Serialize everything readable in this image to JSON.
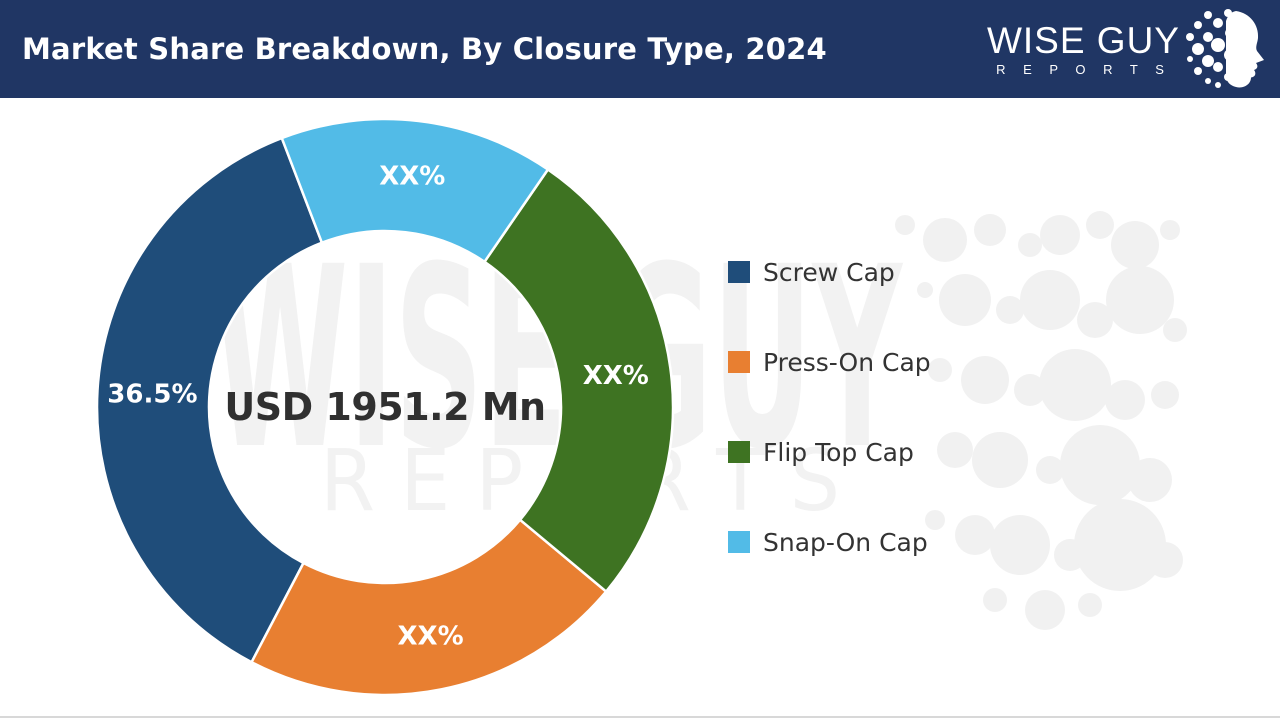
{
  "header": {
    "title": "Market Share Breakdown, By Closure Type, 2024",
    "logo": {
      "line1": "WISE GUY",
      "line2": "R E P O R T S"
    }
  },
  "watermark": {
    "line1": "WISE GUY",
    "line2": "R E P O R T S"
  },
  "chart_data": {
    "type": "pie",
    "subtype": "donut",
    "title": "Market Share Breakdown, By Closure Type, 2024",
    "center_label": "USD 1951.2 Mn",
    "legend_position": "right",
    "start_angle_deg": 111,
    "direction": "ccw",
    "series": [
      {
        "name": "Screw Cap",
        "label": "36.5%",
        "value_pct": 36.5,
        "value_hidden": false,
        "color": "#1f4d7a"
      },
      {
        "name": "Press-On Cap",
        "label": "XX%",
        "value_pct": 21.6,
        "value_hidden": true,
        "color": "#e87f31"
      },
      {
        "name": "Flip Top Cap",
        "label": "XX%",
        "value_pct": 26.5,
        "value_hidden": true,
        "color": "#3e7322"
      },
      {
        "name": "Snap-On Cap",
        "label": "XX%",
        "value_pct": 15.4,
        "value_hidden": true,
        "color": "#52bbe7"
      }
    ],
    "note": "Hidden slice percentages (XX%) estimated from arc angles for rendering only"
  }
}
